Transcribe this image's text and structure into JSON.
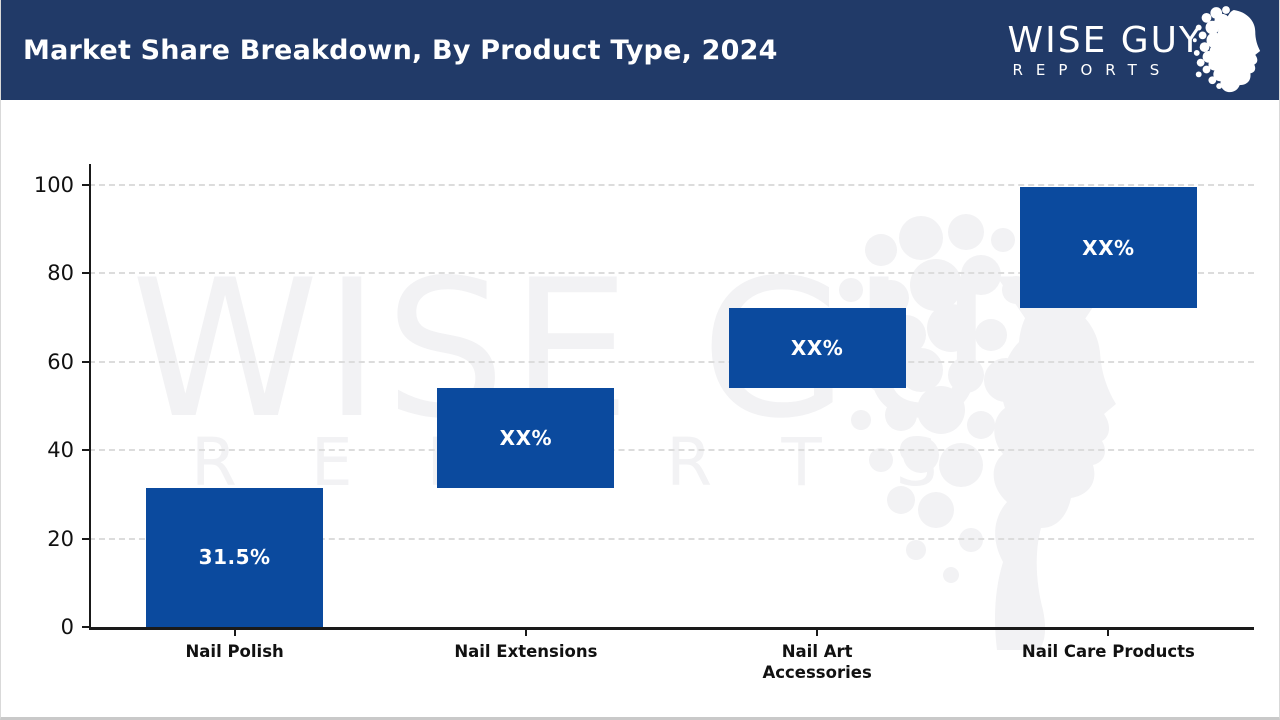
{
  "header": {
    "title": "Market Share Breakdown, By Product Type, 2024",
    "logo": {
      "line1": "WISE GUY",
      "line2": "REPORTS"
    }
  },
  "watermark": {
    "line1": "WISE GUY",
    "line2": "REPORTS"
  },
  "chart_data": {
    "type": "bar",
    "subtype": "floating-waterfall",
    "title": "Market Share Breakdown, By Product Type, 2024",
    "xlabel": "",
    "ylabel": "",
    "categories": [
      "Nail Polish",
      "Nail Extensions",
      "Nail Art Accessories",
      "Nail Care Products"
    ],
    "category_label_lines": [
      [
        "Nail Polish"
      ],
      [
        "Nail Extensions"
      ],
      [
        "Nail Art",
        "Accessories"
      ],
      [
        "Nail Care Products"
      ]
    ],
    "segments": [
      {
        "category": "Nail Polish",
        "start": 0,
        "end": 31.5,
        "label": "31.5%"
      },
      {
        "category": "Nail Extensions",
        "start": 31.5,
        "end": 54,
        "label": "XX%"
      },
      {
        "category": "Nail Art Accessories",
        "start": 54,
        "end": 72,
        "label": "XX%"
      },
      {
        "category": "Nail Care Products",
        "start": 72,
        "end": 99.5,
        "label": "XX%"
      }
    ],
    "y_ticks": [
      0,
      20,
      40,
      60,
      80,
      100
    ],
    "ylim": [
      0,
      104.7
    ],
    "grid": "horizontal-dashed",
    "legend": "none",
    "colors": {
      "bar": "#0b4a9e",
      "bar_label": "#ffffff",
      "axis": "#1a1a1a",
      "grid": "#dcdcdc",
      "header_bg": "#213a68",
      "watermark": "#f2f2f4"
    }
  }
}
